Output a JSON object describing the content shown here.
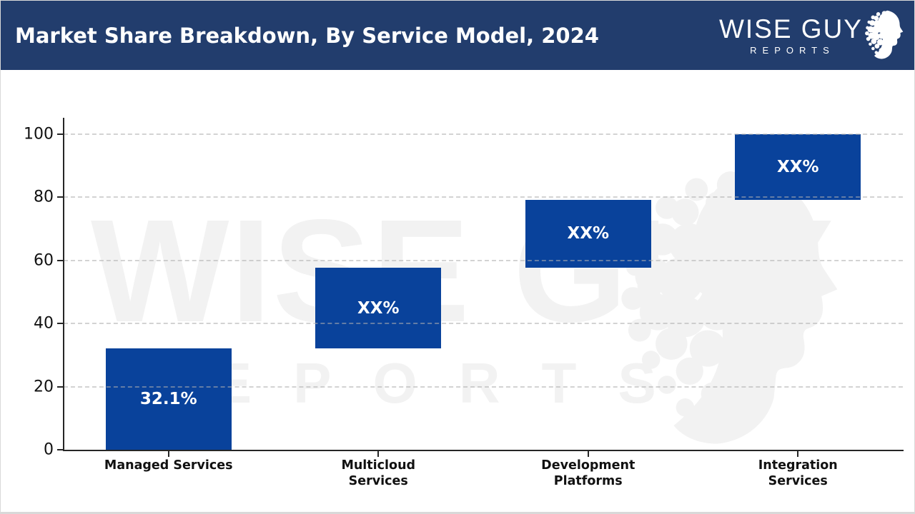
{
  "header": {
    "title": "Market Share Breakdown, By Service Model, 2024",
    "logo": {
      "brand_top": "WISE GUY",
      "brand_bottom": "REPORTS"
    }
  },
  "watermark": {
    "line1": "WISE GUY",
    "line2": "REPORTS"
  },
  "chart_data": {
    "type": "bar",
    "subtype": "waterfall",
    "title": "Market Share Breakdown, By Service Model, 2024",
    "categories": [
      "Managed Services",
      "Multicloud\nServices",
      "Development\nPlatforms",
      "Integration\nServices"
    ],
    "segments": [
      {
        "category": "Managed Services",
        "start": 0,
        "end": 32.1,
        "value_label": "32.1%"
      },
      {
        "category": "Multicloud Services",
        "start": 32.1,
        "end": 57.7,
        "value_label": "XX%"
      },
      {
        "category": "Development Platforms",
        "start": 57.7,
        "end": 79.2,
        "value_label": "XX%"
      },
      {
        "category": "Integration Services",
        "start": 79.2,
        "end": 100,
        "value_label": "XX%"
      }
    ],
    "ylim": [
      0,
      100
    ],
    "yticks": [
      0,
      20,
      40,
      60,
      80,
      100
    ],
    "grid": "horizontal-dashed, drawn over bars",
    "legend": "none",
    "bar_color": "#09429b",
    "value_label_color": "#ffffff"
  },
  "colors": {
    "header_bg": "#223d6d",
    "bar": "#09429b",
    "axis": "#262626",
    "watermark": "#f2f2f2",
    "bottom_rule": "#d9d9d9"
  }
}
